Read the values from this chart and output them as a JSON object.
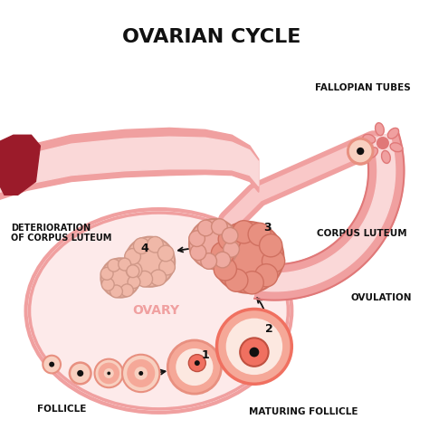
{
  "title": "OVARIAN CYCLE",
  "title_fontsize": 16,
  "title_fontweight": "bold",
  "background_color": "#ffffff",
  "labels": {
    "fallopian_tubes": "FALLOPIAN TUBES",
    "corpus_luteum": "CORPUS LUTEUM",
    "deterioration": "DETERIORATION\nOF CORPUS LUTEUM",
    "ovulation": "OVULATION",
    "ovary": "OVARY",
    "follicle": "FOLLICLE",
    "maturing_follicle": "MATURING FOLLICLE",
    "stage1": "1",
    "stage2": "2",
    "stage3": "3",
    "stage4": "4"
  },
  "colors": {
    "pink_light": "#f9c8c8",
    "pink_medium": "#f0a0a0",
    "pink_dark": "#e07878",
    "pink_tube_outer": "#e89090",
    "pink_tube_inner": "#fad8d8",
    "red_dark": "#9b1b2a",
    "ovary_fill": "#fdeaea",
    "ovary_border": "#f0a8a8",
    "text_color": "#111111",
    "arrow_color": "#111111",
    "white": "#ffffff",
    "corpus_color": "#e89080",
    "corpus_dark": "#d07060",
    "follicle_wall": "#f5a898",
    "follicle_inner": "#f8d0c0",
    "egg_color": "#f07060",
    "egg_dark": "#c05040"
  }
}
